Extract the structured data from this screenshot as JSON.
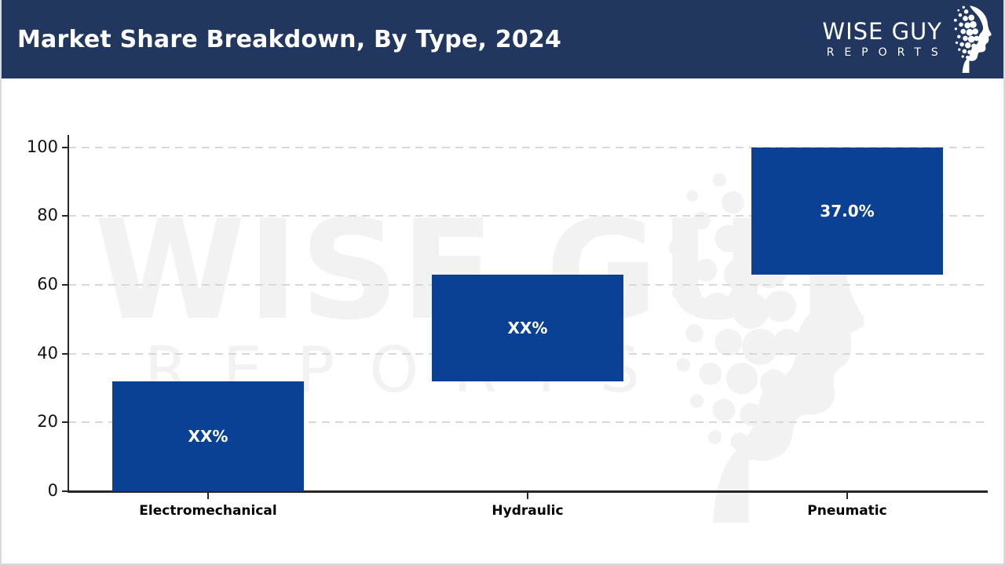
{
  "page": {
    "background": "#ffffff",
    "border_color": "#d9d9d9"
  },
  "header": {
    "title": "Market Share Breakdown, By Type, 2024",
    "background": "#22375f",
    "logo": {
      "line1": "WISE GUY",
      "line2": "REPORTS",
      "icon": "dotted-head-profile-icon"
    }
  },
  "watermark": {
    "line1": "WISE GUY",
    "line2": "REPORTS",
    "icon": "dotted-head-profile-icon",
    "color": "#f2f2f2"
  },
  "chart_data": {
    "type": "bar",
    "subtype": "floating-segment-bars",
    "title": "Market Share Breakdown, By Type, 2024",
    "categories": [
      "Electromechanical",
      "Hydraulic",
      "Pneumatic"
    ],
    "bars": [
      {
        "category": "Electromechanical",
        "from": 0,
        "to": 32,
        "label": "XX%"
      },
      {
        "category": "Hydraulic",
        "from": 32,
        "to": 63,
        "label": "XX%"
      },
      {
        "category": "Pneumatic",
        "from": 63,
        "to": 100,
        "label": "37.0%"
      }
    ],
    "yticks": [
      0,
      20,
      40,
      60,
      80,
      100
    ],
    "ylim": [
      0,
      103.6
    ],
    "xlabel": "",
    "ylabel": "",
    "grid": "horizontal-dashed",
    "legend": "none",
    "bar_color": "#0a4195",
    "bar_label_color": "#ffffff",
    "grid_color": "#d8d8d8",
    "axis_color": "#262626"
  }
}
